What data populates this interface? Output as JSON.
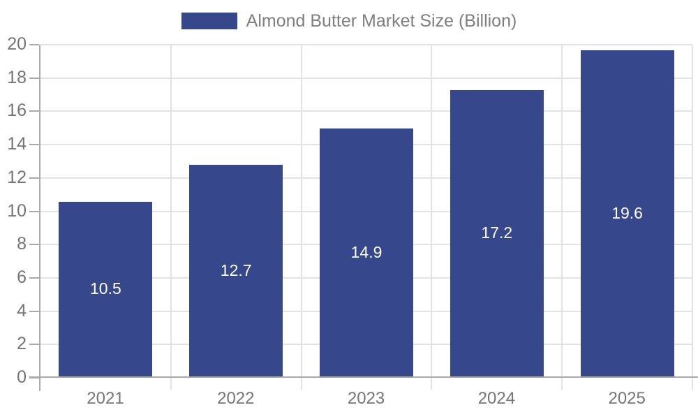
{
  "legend": {
    "label": "Almond Butter Market Size (Billion)"
  },
  "colors": {
    "bar": "#36478C",
    "bar_label": "#FFFFFF",
    "tick_label": "#757575",
    "legend_text": "#7F7F7F",
    "gridline": "#E3E3E3",
    "axis_line": "#A9A9A9"
  },
  "chart_data": {
    "type": "bar",
    "title": "Almond Butter Market Size (Billion)",
    "categories": [
      "2021",
      "2022",
      "2023",
      "2024",
      "2025"
    ],
    "values": [
      10.5,
      12.7,
      14.9,
      17.2,
      19.6
    ],
    "bar_labels": [
      "10.5",
      "12.7",
      "14.9",
      "17.2",
      "19.6"
    ],
    "xlabel": "",
    "ylabel": "",
    "ylim": [
      0,
      20
    ],
    "ytick_step": 2,
    "grid": true,
    "legend_position": "top-center",
    "bar_label_position": "center-inside"
  }
}
